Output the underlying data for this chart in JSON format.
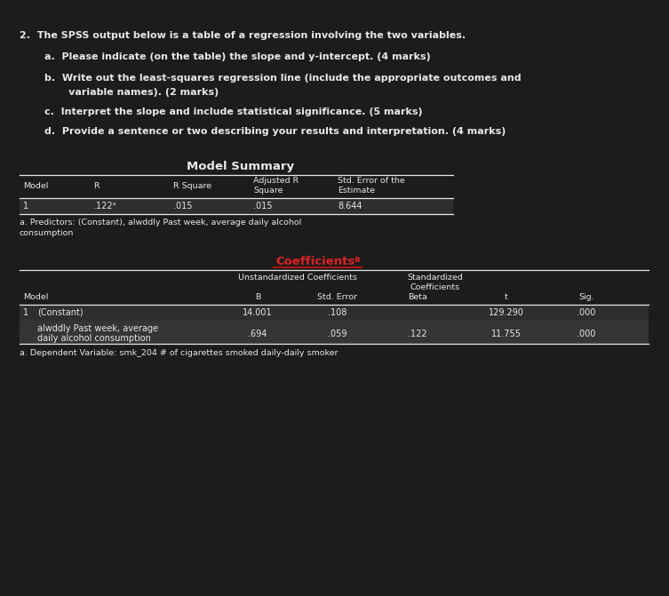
{
  "bg_color": "#1c1c1c",
  "text_color": "#e8e8e8",
  "title_text": "2.  The SPSS output below is a table of a regression involving the two variables.",
  "q_a": "a.  Please indicate (on the table) the slope and y-intercept. (4 marks)",
  "q_b1": "b.  Write out the least-squares regression line (include the appropriate outcomes and",
  "q_b2": "       variable names). (2 marks)",
  "q_c": "c.  Interpret the slope and include statistical significance. (5 marks)",
  "q_d": "d.  Provide a sentence or two describing your results and interpretation. (4 marks)",
  "model_summary_title": "Model Summary",
  "ms_col_labels": [
    "Model",
    "R",
    "R Square",
    "Adjusted R\nSquare",
    "Std. Error of the\nEstimate"
  ],
  "ms_row": [
    "1",
    ".122ᵃ",
    ".015",
    ".015",
    "8.644"
  ],
  "ms_footnote1": "a. Predictors: (Constant), alwddly Past week, average daily alcohol",
  "ms_footnote2": "consumption",
  "coeff_title": "Coefficients",
  "coeff_title_super": "a",
  "coeff_title_color": "#dd2222",
  "coeff_underline_color": "#cc1111",
  "unstd_label": "Unstandardized Coefficients",
  "std_label": "Standardized\nCoefficients",
  "coeff_h2": [
    "Model",
    "B",
    "Std. Error",
    "Beta",
    "t",
    "Sig."
  ],
  "c_row1_label1": "1",
  "c_row1_label2": "(Constant)",
  "c_row1_B": "14.001",
  "c_row1_SE": ".108",
  "c_row1_t": "129.290",
  "c_row1_sig": ".000",
  "c_row2_label": "alwddly Past week, average",
  "c_row2_label2": "daily alcohol consumption",
  "c_row2_B": ".694",
  "c_row2_SE": ".059",
  "c_row2_beta": ".122",
  "c_row2_t": "11.755",
  "c_row2_sig": ".000",
  "coeff_footnote": "a. Dependent Variable: smk_204 # of cigarettes smoked daily-daily smoker",
  "row_shade": "#2e2e2e",
  "row2_shade": "#353535"
}
